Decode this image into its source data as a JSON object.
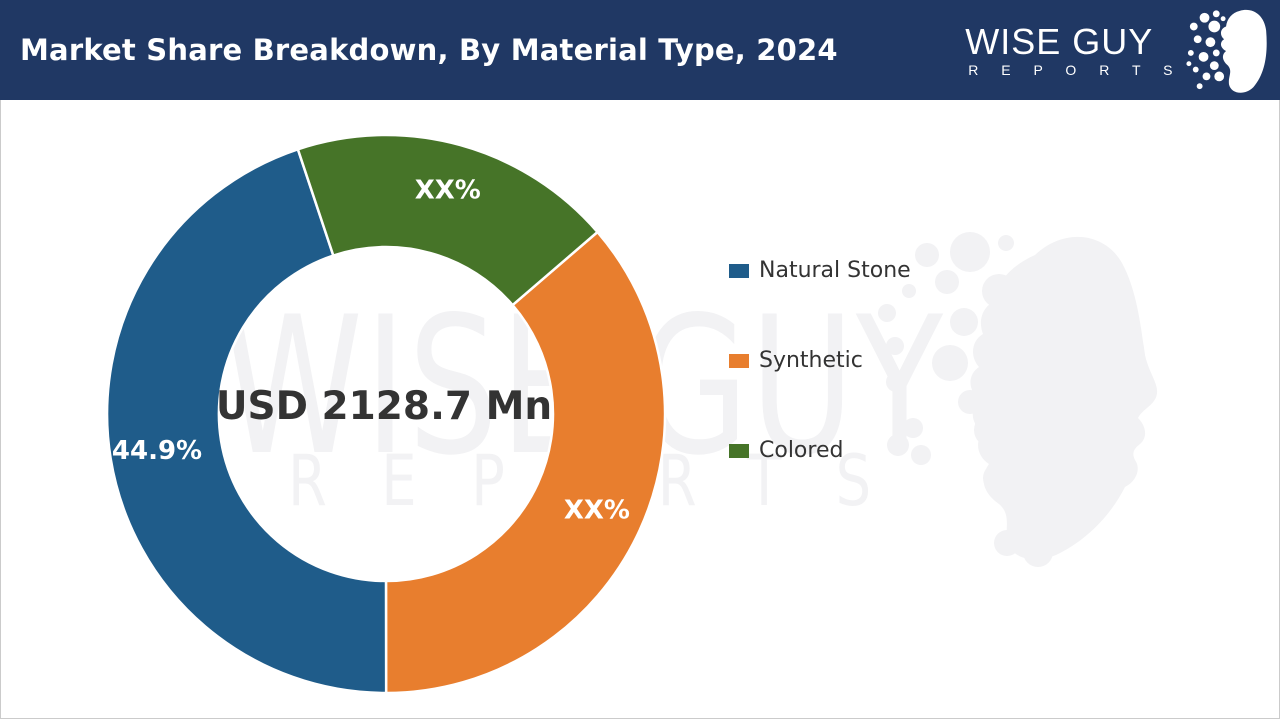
{
  "header": {
    "title": "Market Share Breakdown, By Material Type, 2024",
    "logo": {
      "line1": "WISE GUY",
      "line2": "R E P O R T S"
    }
  },
  "chart_data": {
    "type": "pie",
    "subtype": "donut",
    "title": "Market Share Breakdown, By Material Type, 2024",
    "center_label": "USD 2128.7 Mn",
    "start_angle_deg": 108.4,
    "direction": "counterclockwise",
    "legend_position": "right",
    "slices": [
      {
        "name": "Natural Stone",
        "label": "44.9%",
        "value_pct": 44.9,
        "color": "#1f5c8a"
      },
      {
        "name": "Synthetic",
        "label": "XX%",
        "value_pct": 36.3,
        "color": "#e87e2e"
      },
      {
        "name": "Colored",
        "label": "XX%",
        "value_pct": 18.8,
        "color": "#467428"
      }
    ]
  },
  "watermark": {
    "line1": "WISE GUY",
    "line2": "REPORTS"
  },
  "colors": {
    "header_bg": "#203864",
    "title_text": "#ffffff",
    "body_text": "#333333",
    "watermark": "#f2f2f4",
    "border": "#cbcbcb",
    "slice_label_text": "#ffffff"
  }
}
